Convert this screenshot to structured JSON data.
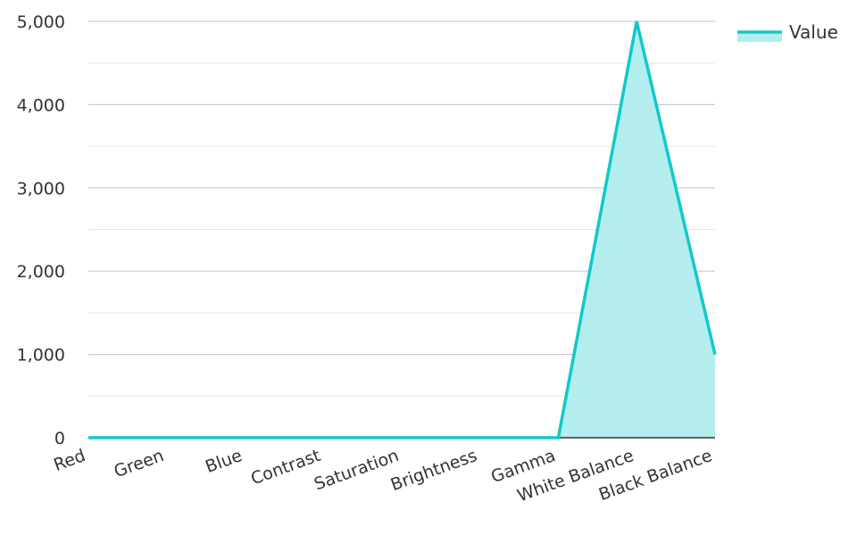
{
  "chart_data": {
    "type": "area",
    "categories": [
      "Red",
      "Green",
      "Blue",
      "Contrast",
      "Saturation",
      "Brightness",
      "Gamma",
      "White Balance",
      "Black Balance"
    ],
    "series": [
      {
        "name": "Value",
        "values": [
          0,
          0,
          0,
          0,
          0,
          0,
          0,
          5000,
          1000
        ]
      }
    ],
    "y_ticks": [
      "0",
      "1,000",
      "2,000",
      "3,000",
      "4,000",
      "5,000"
    ],
    "ylim": [
      0,
      5000
    ],
    "grid": true,
    "legend_position": "top-right",
    "colors": {
      "line": "#12c9c9",
      "fill": "#b3eded",
      "grid_major": "#cccccc",
      "grid_minor": "#e6e6e6",
      "axis": "#333333",
      "text": "#333333"
    }
  }
}
